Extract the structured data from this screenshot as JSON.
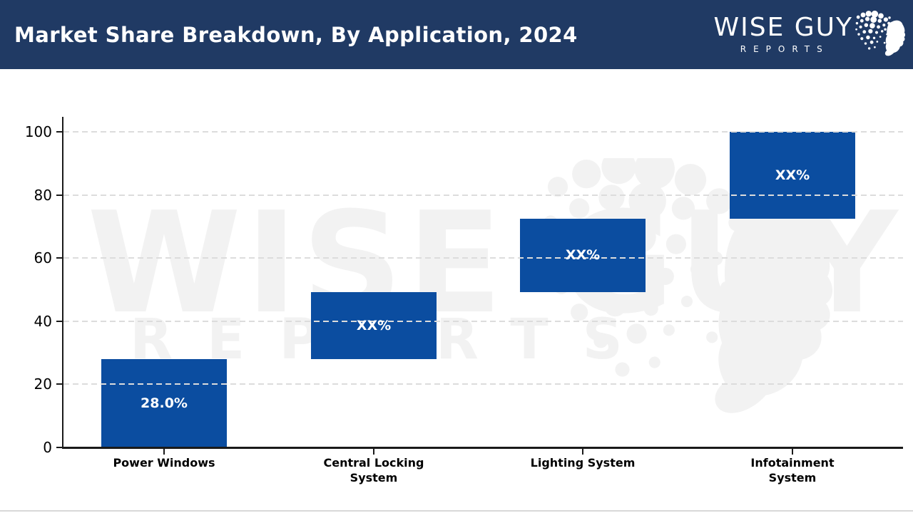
{
  "header": {
    "title": "Market Share Breakdown, By Application, 2024",
    "logo": {
      "wordmark": "WISE GUY",
      "sub": "REPORTS",
      "face_icon": "dotted-face-profile-icon"
    }
  },
  "watermark": {
    "line1": "WISE GUY",
    "line2": "REPORTS",
    "face": "dotted-face-profile-watermark",
    "color": "#f2f2f2"
  },
  "chart_data": {
    "type": "bar",
    "subtype": "floating-waterfall",
    "title": "Market Share Breakdown, By Application, 2024",
    "categories": [
      "Power Windows",
      "Central Locking System",
      "Lighting System",
      "Infotainment System"
    ],
    "category_display": [
      [
        "Power Windows"
      ],
      [
        "Central Locking",
        "System"
      ],
      [
        "Lighting System"
      ],
      [
        "Infotainment",
        "System"
      ]
    ],
    "segments": [
      {
        "category": "Power Windows",
        "start": 0,
        "end": 28,
        "label": "28.0%"
      },
      {
        "category": "Central Locking System",
        "start": 28,
        "end": 49.3,
        "label": "XX%"
      },
      {
        "category": "Lighting System",
        "start": 49.3,
        "end": 72.4,
        "label": "XX%"
      },
      {
        "category": "Infotainment System",
        "start": 72.4,
        "end": 100,
        "label": "XX%"
      }
    ],
    "yticks": [
      0,
      20,
      40,
      60,
      80,
      100
    ],
    "ylim": [
      0,
      104.5
    ],
    "xlabel": "",
    "ylabel": "",
    "grid": "horizontal-dashed",
    "legend": "none",
    "colors": {
      "bar": "#0b4da0",
      "grid": "#dcdcdc",
      "axis": "#1a1a1a",
      "bar_label_text": "#ffffff",
      "tick_text": "#000000",
      "header_bg": "#203a64",
      "header_text": "#ffffff",
      "watermark": "#f2f2f2"
    }
  }
}
